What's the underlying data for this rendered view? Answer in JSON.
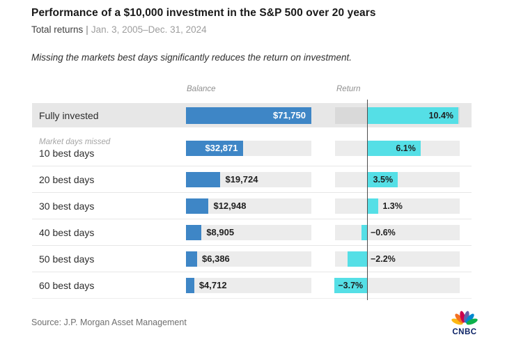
{
  "header": {
    "title": "Performance of a $10,000 investment in the S&P 500 over 20 years",
    "subtitle_left": "Total returns",
    "subtitle_sep": "|",
    "subtitle_dates": "Jan. 3, 2005–Dec. 31, 2024",
    "note": "Missing the markets best days significantly reduces the return on investment."
  },
  "columns": {
    "balance": "Balance",
    "return": "Return"
  },
  "chart_data": {
    "type": "bar",
    "title": "Performance of a $10,000 investment in the S&P 500 over 20 years",
    "series": [
      {
        "name": "Balance ($)",
        "values": [
          71750,
          32871,
          19724,
          12948,
          8905,
          6386,
          4712
        ]
      },
      {
        "name": "Return (%)",
        "values": [
          10.4,
          6.1,
          3.5,
          1.3,
          -0.6,
          -2.2,
          -3.7
        ]
      }
    ],
    "balance_max": 71750,
    "return_range": [
      -3.7,
      10.4
    ],
    "rows": [
      {
        "label": "Fully invested",
        "sublabel": "",
        "balance": 71750,
        "balance_label": "$71,750",
        "return_pct": 10.4,
        "return_label": "10.4%",
        "highlight": true
      },
      {
        "label": "10 best days",
        "sublabel": "Market days missed",
        "balance": 32871,
        "balance_label": "$32,871",
        "return_pct": 6.1,
        "return_label": "6.1%",
        "highlight": false
      },
      {
        "label": "20 best days",
        "sublabel": "",
        "balance": 19724,
        "balance_label": "$19,724",
        "return_pct": 3.5,
        "return_label": "3.5%",
        "highlight": false
      },
      {
        "label": "30 best days",
        "sublabel": "",
        "balance": 12948,
        "balance_label": "$12,948",
        "return_pct": 1.3,
        "return_label": "1.3%",
        "highlight": false
      },
      {
        "label": "40 best days",
        "sublabel": "",
        "balance": 8905,
        "balance_label": "$8,905",
        "return_pct": -0.6,
        "return_label": "−0.6%",
        "highlight": false
      },
      {
        "label": "50 best days",
        "sublabel": "",
        "balance": 6386,
        "balance_label": "$6,386",
        "return_pct": -2.2,
        "return_label": "−2.2%",
        "highlight": false
      },
      {
        "label": "60 best days",
        "sublabel": "",
        "balance": 4712,
        "balance_label": "$4,712",
        "return_pct": -3.7,
        "return_label": "−3.7%",
        "highlight": false
      }
    ]
  },
  "colors": {
    "balance_bar": "#3e86c6",
    "return_bar": "#55dfe6",
    "highlight_row": "#e7e7e7",
    "track": "#ececec",
    "axis_line": "#4d4d4d",
    "logo_navy": "#0b2265"
  },
  "footer": {
    "source": "Source: J.P. Morgan Asset Management",
    "logo_text": "CNBC"
  }
}
